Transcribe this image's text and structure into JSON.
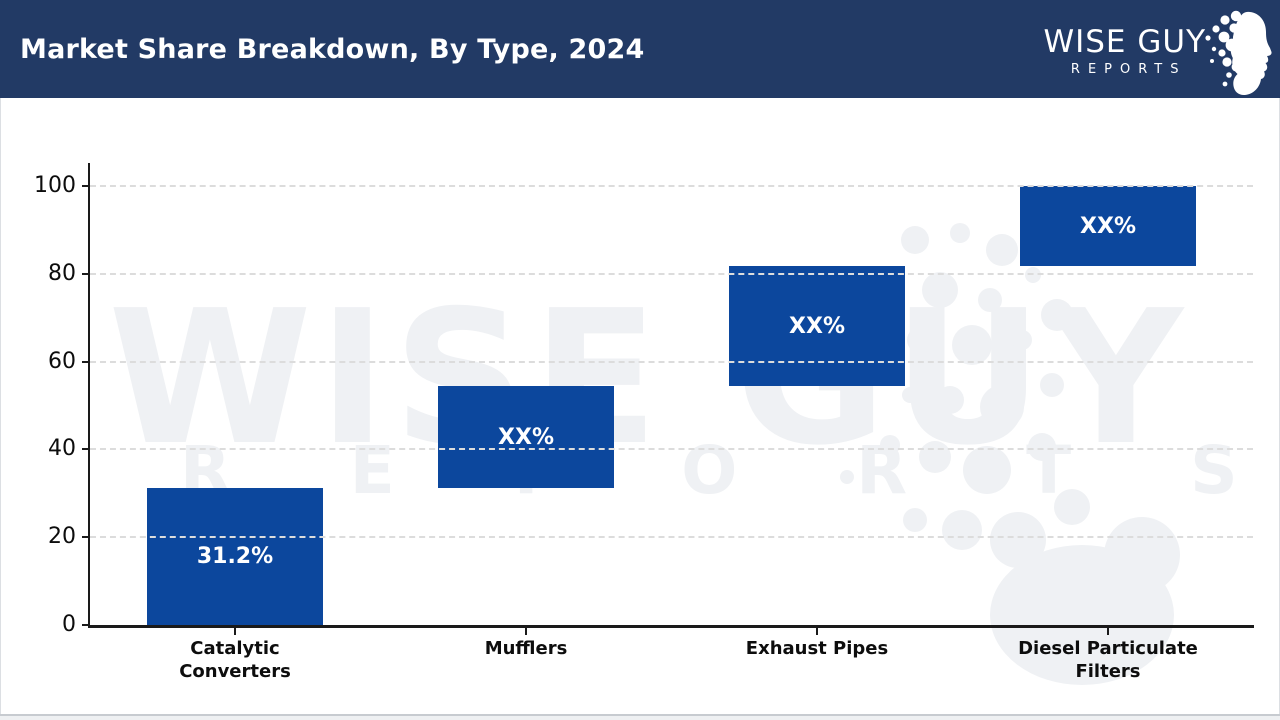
{
  "header": {
    "title": "Market Share Breakdown, By Type, 2024",
    "logo": {
      "line1": "WISE GUY",
      "line2": "REPORTS"
    },
    "bg_color": "#223A65"
  },
  "watermark": {
    "line1": "WISE GUY",
    "line2": "R E P O R T S"
  },
  "chart_data": {
    "type": "bar",
    "subtype": "waterfall",
    "title": "Market Share Breakdown, By Type, 2024",
    "categories": [
      "Catalytic Converters",
      "Mufflers",
      "Exhaust Pipes",
      "Diesel Particulate Filters"
    ],
    "category_tick_labels": [
      "Catalytic\nConverters",
      "Mufflers",
      "Exhaust Pipes",
      "Diesel Particulate\nFilters"
    ],
    "series": [
      {
        "name": "Market share (%)",
        "segments": [
          {
            "category": "Catalytic Converters",
            "start": 0,
            "end": 31.2,
            "label": "31.2%"
          },
          {
            "category": "Mufflers",
            "start": 31.2,
            "end": 54.4,
            "label": "XX%"
          },
          {
            "category": "Exhaust Pipes",
            "start": 54.4,
            "end": 81.8,
            "label": "XX%"
          },
          {
            "category": "Diesel Particulate Filters",
            "start": 81.8,
            "end": 100,
            "label": "XX%"
          }
        ]
      }
    ],
    "ylim": [
      0,
      100
    ],
    "yticks": [
      0,
      20,
      40,
      60,
      80,
      100
    ],
    "grid": {
      "horizontal": true,
      "style": "dashed",
      "color": "#dcdcdc"
    },
    "legend": "none",
    "bar_color": "#0C479D",
    "bar_label_color": "#FFFFFF",
    "axis_color": "#1a1a1a",
    "watermark_color": "#EFF1F4"
  }
}
